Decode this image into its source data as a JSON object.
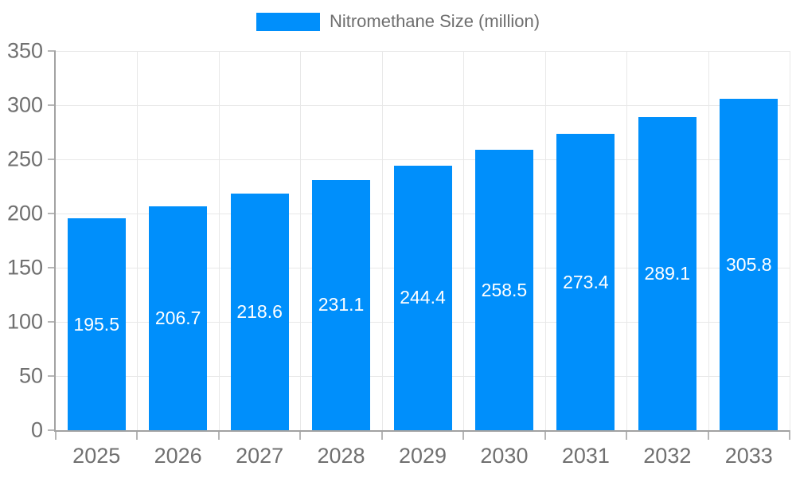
{
  "chart_data": {
    "type": "bar",
    "title": "Nitromethane Size (million)",
    "legend": {
      "position": "top",
      "label": "Nitromethane Size (million)",
      "marker_color": "#008FFB"
    },
    "categories": [
      "2025",
      "2026",
      "2027",
      "2028",
      "2029",
      "2030",
      "2031",
      "2032",
      "2033"
    ],
    "series": [
      {
        "name": "Nitromethane Size (million)",
        "values": [
          195.5,
          206.7,
          218.6,
          231.1,
          244.4,
          258.5,
          273.4,
          289.1,
          305.8
        ]
      }
    ],
    "value_labels": [
      "195.5",
      "206.7",
      "218.6",
      "231.1",
      "244.4",
      "258.5",
      "273.4",
      "289.1",
      "305.8"
    ],
    "xlabel": "",
    "ylabel": "",
    "ylim": [
      0,
      350
    ],
    "yticks": [
      0,
      50,
      100,
      150,
      200,
      250,
      300,
      350
    ],
    "ytick_labels": [
      "0",
      "50",
      "100",
      "150",
      "200",
      "250",
      "300",
      "350"
    ],
    "grid": "horizontal-and-vertical",
    "colors": {
      "bar": "#008FFB",
      "bar_label": "#FFFFFF",
      "axis_label": "#707070",
      "legend_label": "#6E6E6E",
      "grid_line": "#E8E8E8",
      "axis_line": "#A2A2A2",
      "tick": "#B6B6B6",
      "background": "#FFFFFF"
    }
  }
}
